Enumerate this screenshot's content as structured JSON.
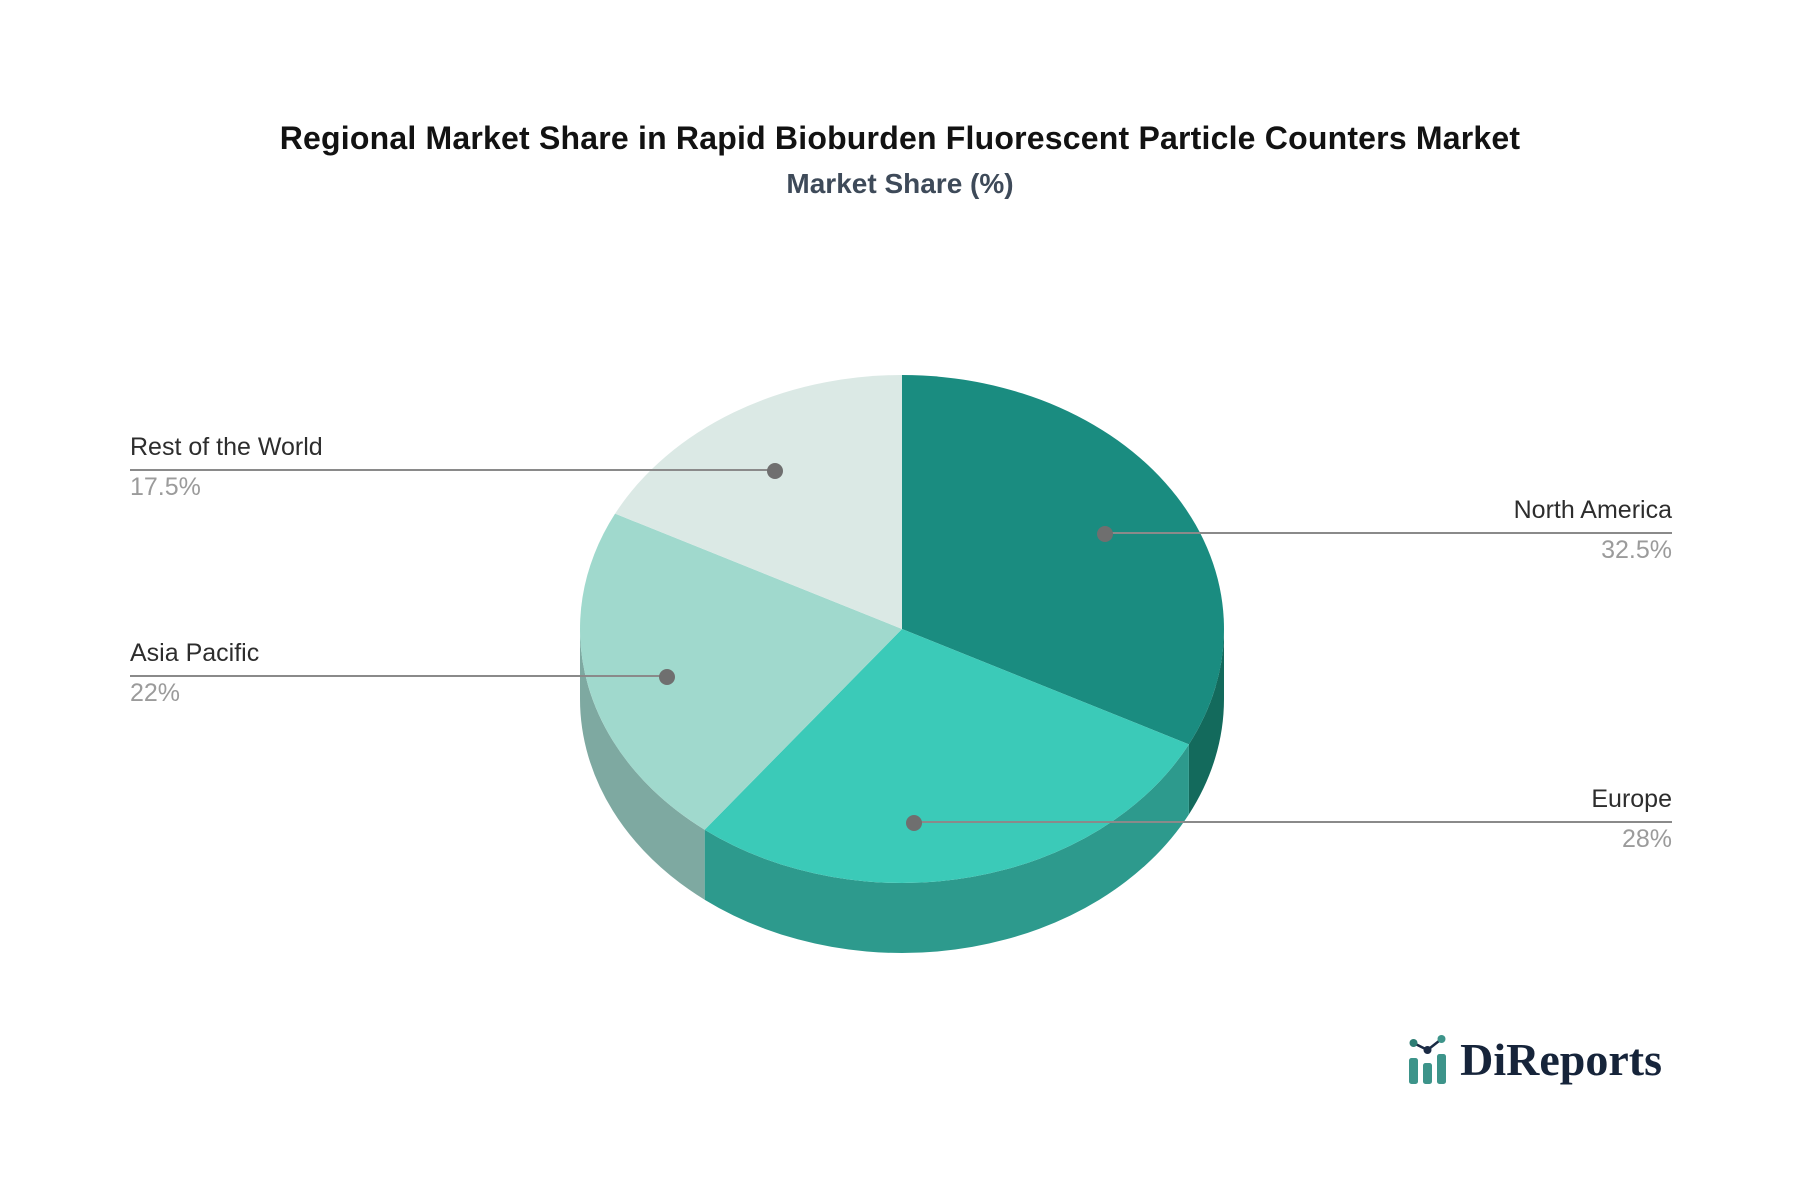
{
  "chart_data": {
    "type": "pie",
    "style": "3d-depth",
    "title": "Regional Market Share in Rapid Bioburden Fluorescent Particle Counters Market",
    "subtitle": "Market Share (%)",
    "start_angle": "12-o-clock",
    "direction": "clockwise",
    "legend_position": "callout-labels",
    "grid": false,
    "slices": [
      {
        "label": "North America",
        "value": 32.5,
        "display": "32.5%",
        "color_top": "#1a8c80",
        "color_side": "#136a5c",
        "label_side": "right"
      },
      {
        "label": "Europe",
        "value": 28,
        "display": "28%",
        "color_top": "#3bcab8",
        "color_side": "#2d9a8d",
        "label_side": "right"
      },
      {
        "label": "Asia Pacific",
        "value": 22,
        "display": "22%",
        "color_top": "#a0d9cd",
        "color_side": "#7ea9a1",
        "label_side": "left"
      },
      {
        "label": "Rest of the World",
        "value": 17.5,
        "display": "17.5%",
        "color_top": "#dbe9e5",
        "color_side": "#c5d8d3",
        "label_side": "left"
      }
    ]
  },
  "watermark": {
    "brand": "DiReports"
  },
  "colors": {
    "background": "#ffffff",
    "title_text": "#121212",
    "subtitle_text": "#3e4a59",
    "label_text": "#2d2d2d",
    "percent_text": "#9b9b9b",
    "leader_line": "#8a8a8a",
    "leader_dot": "#6f6f6f",
    "logo_navy": "#16243a",
    "logo_teal": "#3d948a"
  }
}
